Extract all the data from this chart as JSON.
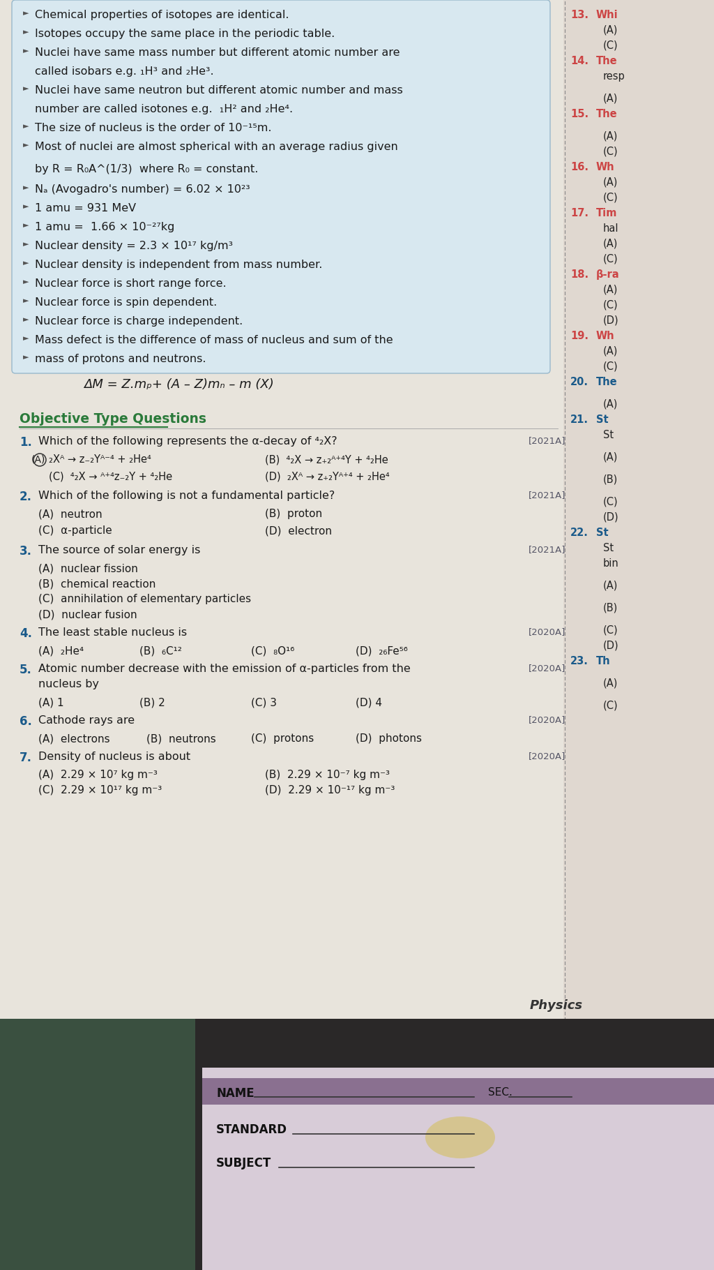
{
  "bg_outer": "#6b5a4e",
  "page_bg": "#e8e4dc",
  "box_bg": "#d8e8f0",
  "box_border": "#98b8cc",
  "right_col_bg": "#e0d8d0",
  "right_divider": "#b0a090",
  "text_color": "#1a1a1a",
  "bullet_color": "#444444",
  "heading_color": "#2a7a3a",
  "question_num_color": "#1a5a8a",
  "year_color": "#555566",
  "right_num_color": "#cc4444",
  "right_text_color": "#222222",
  "footer_italic_color": "#333333",
  "answer_sheet_bg": "#c8b8c8",
  "answer_sheet_dark": "#8a7a8a",
  "bottom_bg": "#3a3030",
  "bottom_left_bg": "#4a6858",
  "highlight_color": "#9988aa",
  "bullet_char": "►",
  "bullet_points": [
    {
      "text": "Chemical properties of isotopes are identical.",
      "lines": 1
    },
    {
      "text": "Isotopes occupy the same place in the periodic table.",
      "lines": 1
    },
    {
      "text": "Nuclei have same mass number but different atomic number are",
      "lines": 2,
      "line2": "called isobars e.g. ₁H³ and ₂He³."
    },
    {
      "text": "Nuclei have same neutron but different atomic number and mass",
      "lines": 2,
      "line2": "number are called isotones e.g.  ₁H² and ₂He⁴."
    },
    {
      "text": "The size of nucleus is the order of 10⁻¹⁵m.",
      "lines": 1
    },
    {
      "text": "Most of nuclei are almost spherical with an average radius given",
      "lines": 1
    }
  ],
  "formula_r": "by R = R₀A^(1/3)  where R₀ = constant.",
  "more_bullets": [
    "Nₐ (Avogadro's number) = 6.02 × 10²³",
    "1 amu = 931 MeV",
    "1 amu =  1.66 × 10⁻²⁷kg",
    "Nuclear density = 2.3 × 10¹⁷ kg/m³",
    "Nuclear density is independent from mass number.",
    "Nuclear force is short range force.",
    "Nuclear force is spin dependent.",
    "Nuclear force is charge independent.",
    "Mass defect is the difference of mass of nucleus and sum of the",
    "mass of protons and neutrons."
  ],
  "formula_M": "ΔM = Z.mₚ+ (A – Z)mₙ – m (X)",
  "section_title": "Objective Type Questions",
  "q1_text": "Which of the following represents the α-decay of ⁴₂X?",
  "q1_year": "[2021A]",
  "q1_optA": "(A)  ₂Xᴬ → z₋₂Yᴬ⁻⁴ + ₂He⁴",
  "q1_optB": "(B)  ⁴₂X → z₊₂ᴬ⁺⁴Y + ⁴₂He",
  "q1_optC": "(C)  ⁴₂X → ᴬ⁺⁴z₋₂Y + ⁴₂He",
  "q1_optD": "(D)  ₂Xᴬ → z₊₂Yᴬ⁺⁴ + ₂He⁴",
  "q2_text": "Which of the following is not a fundamental particle?",
  "q2_year": "[2021A]",
  "q3_text": "The source of solar energy is",
  "q3_year": "[2021A]",
  "q4_text": "The least stable nucleus is",
  "q4_year": "[2020A]",
  "q5_text": "Atomic number decrease with the emission of α-particles from the",
  "q5_text2": "nucleus by",
  "q5_year": "[2020A]",
  "q6_text": "Cathode rays are",
  "q6_year": "[2020A]",
  "q7_text": "Density of nucleus is about",
  "q7_year": "[2020A]",
  "right_col": [
    {
      "num": "13.",
      "label": "Whi",
      "num_color": "#cc4444"
    },
    {
      "label": "(A)",
      "indent": true
    },
    {
      "label": "(C)",
      "indent": true
    },
    {
      "num": "14.",
      "label": "The",
      "num_color": "#cc4444"
    },
    {
      "label": "resp",
      "indent": true
    },
    {
      "label": ""
    },
    {
      "label": "(A)",
      "indent": true
    },
    {
      "num": "15.",
      "label": "The",
      "num_color": "#cc4444"
    },
    {
      "label": ""
    },
    {
      "label": "(A)",
      "indent": true
    },
    {
      "label": "(C)",
      "indent": true
    },
    {
      "num": "16.",
      "label": "Wh",
      "num_color": "#cc4444"
    },
    {
      "label": "(A)",
      "indent": true
    },
    {
      "label": "(C)",
      "indent": true
    },
    {
      "num": "17.",
      "label": "Tim",
      "num_color": "#cc4444"
    },
    {
      "label": "hal",
      "indent": true
    },
    {
      "label": "(A)",
      "indent": true
    },
    {
      "label": "(C)",
      "indent": true
    },
    {
      "num": "18.",
      "label": "β-ra",
      "num_color": "#cc4444"
    },
    {
      "label": "(A)",
      "indent": true
    },
    {
      "label": "(C)",
      "indent": true
    },
    {
      "label": "(D)",
      "indent": true
    },
    {
      "num": "19.",
      "label": "Wh",
      "num_color": "#cc4444"
    },
    {
      "label": "(A)",
      "indent": true
    },
    {
      "label": "(C)",
      "indent": true
    },
    {
      "num": "20.",
      "label": "The",
      "num_color": "#1a5a8a"
    },
    {
      "label": ""
    },
    {
      "label": "(A)",
      "indent": true
    },
    {
      "num": "21.",
      "label": "St",
      "num_color": "#1a5a8a"
    },
    {
      "label": "St",
      "indent": true
    },
    {
      "label": ""
    },
    {
      "label": "(A)",
      "indent": true
    },
    {
      "label": ""
    },
    {
      "label": "(B)",
      "indent": true
    },
    {
      "label": ""
    },
    {
      "label": "(C)",
      "indent": true
    },
    {
      "label": "(D)",
      "indent": true
    },
    {
      "num": "22.",
      "label": "St",
      "num_color": "#1a5a8a"
    },
    {
      "label": "St",
      "indent": true
    },
    {
      "label": "bin",
      "indent": true
    },
    {
      "label": ""
    },
    {
      "label": "(A)",
      "indent": true
    },
    {
      "label": ""
    },
    {
      "label": "(B)",
      "indent": true
    },
    {
      "label": ""
    },
    {
      "label": "(C)",
      "indent": true
    },
    {
      "label": "(D)",
      "indent": true
    },
    {
      "num": "23.",
      "label": "Th",
      "num_color": "#1a5a8a"
    },
    {
      "label": ""
    },
    {
      "label": "(A)",
      "indent": true
    },
    {
      "label": ""
    },
    {
      "label": "(C)",
      "indent": true
    }
  ]
}
